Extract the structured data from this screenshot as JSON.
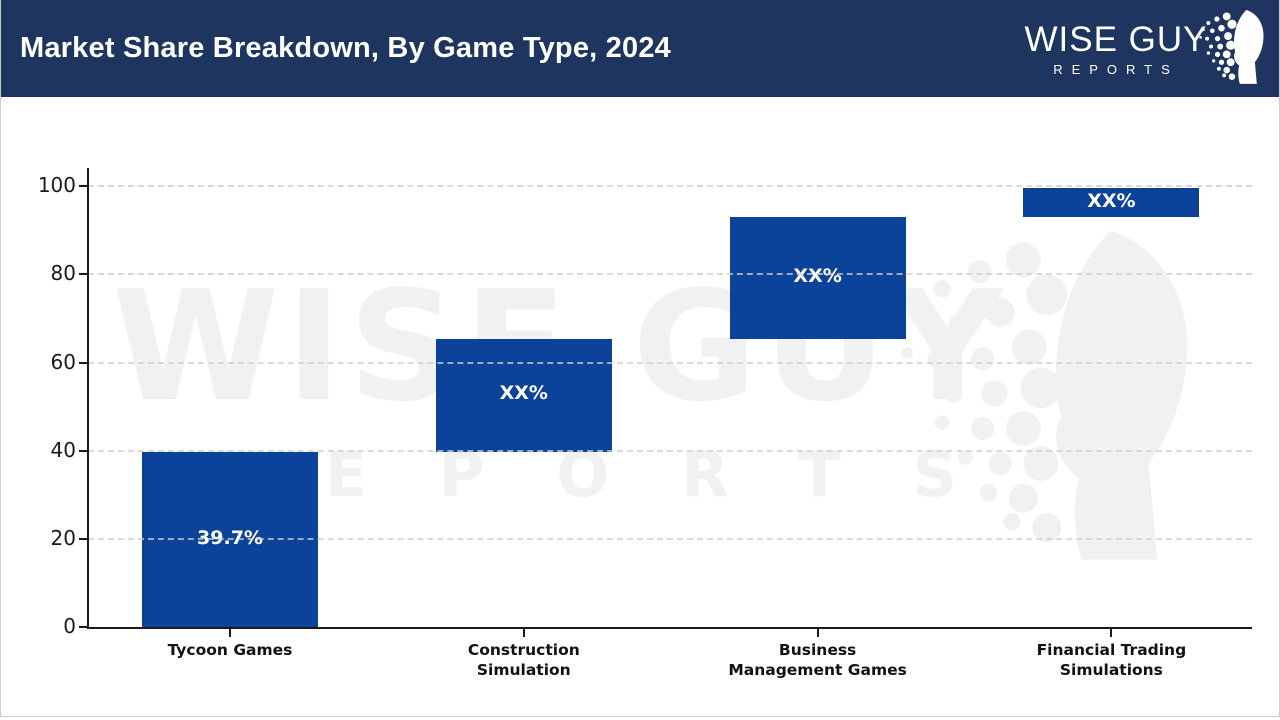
{
  "header": {
    "title": "Market Share Breakdown, By Game Type, 2024",
    "bg_color": "#1e3560",
    "logo": {
      "line1": "WISE GUY",
      "line2": "REPORTS"
    }
  },
  "watermark": {
    "line1": "WISE GUY",
    "line2": "REPORTS"
  },
  "chart_data": {
    "type": "bar",
    "subtype": "waterfall-stacked-segments",
    "title": "Market Share Breakdown, By Game Type, 2024",
    "categories": [
      "Tycoon Games",
      "Construction\nSimulation",
      "Business\nManagement Games",
      "Financial Trading\nSimulations"
    ],
    "segments": [
      {
        "category": "Tycoon Games",
        "start": 0,
        "end": 39.7,
        "label": "39.7%"
      },
      {
        "category": "Construction Simulation",
        "start": 39.7,
        "end": 65.4,
        "label": "XX%"
      },
      {
        "category": "Business Management Games",
        "start": 65.4,
        "end": 93.0,
        "label": "XX%"
      },
      {
        "category": "Financial Trading Simulations",
        "start": 93.0,
        "end": 99.6,
        "label": "XX%"
      }
    ],
    "yticks": [
      0,
      20,
      40,
      60,
      80,
      100
    ],
    "ylim": [
      0,
      104
    ],
    "xlabel": "",
    "ylabel": "",
    "grid": true,
    "legend": false,
    "bar_color": "#0a4399",
    "grid_color": "#d9d9d9",
    "axis_color": "#1a1a1a"
  }
}
